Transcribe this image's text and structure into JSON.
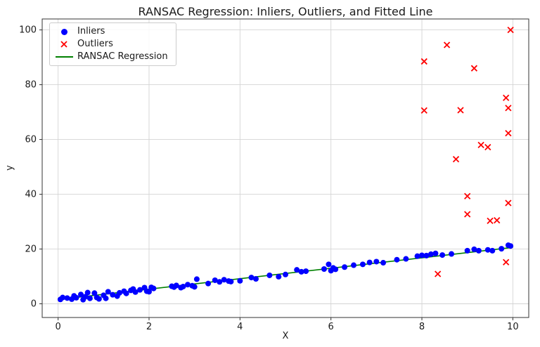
{
  "chart_data": {
    "type": "scatter",
    "title": "RANSAC Regression: Inliers, Outliers, and Fitted Line",
    "xlabel": "X",
    "ylabel": "y",
    "xlim": [
      -0.35,
      10.35
    ],
    "ylim": [
      -5,
      104
    ],
    "xticks": [
      0,
      2,
      4,
      6,
      8,
      10
    ],
    "yticks": [
      0,
      20,
      40,
      60,
      80,
      100
    ],
    "grid": true,
    "legend_position": "upper left",
    "colors": {
      "grid": "#d4d4d4",
      "spine": "#333333",
      "text": "#1a1a1a",
      "inliers": "#0000ff",
      "outliers": "#ff0000",
      "line": "#008000"
    },
    "series": [
      {
        "name": "Inliers",
        "type": "scatter",
        "marker": "circle",
        "color": "#0000ff",
        "points": [
          [
            0.05,
            1.6
          ],
          [
            0.1,
            2.3
          ],
          [
            0.2,
            2.1
          ],
          [
            0.3,
            1.7
          ],
          [
            0.35,
            2.9
          ],
          [
            0.4,
            2.2
          ],
          [
            0.5,
            3.4
          ],
          [
            0.55,
            1.5
          ],
          [
            0.6,
            2.6
          ],
          [
            0.65,
            4.1
          ],
          [
            0.7,
            2.0
          ],
          [
            0.8,
            3.9
          ],
          [
            0.85,
            2.3
          ],
          [
            0.9,
            1.8
          ],
          [
            1.0,
            3.1
          ],
          [
            1.05,
            2.0
          ],
          [
            1.1,
            4.4
          ],
          [
            1.2,
            3.3
          ],
          [
            1.3,
            2.8
          ],
          [
            1.35,
            4.0
          ],
          [
            1.45,
            4.6
          ],
          [
            1.5,
            3.8
          ],
          [
            1.6,
            4.9
          ],
          [
            1.65,
            5.4
          ],
          [
            1.7,
            4.3
          ],
          [
            1.8,
            5.1
          ],
          [
            1.9,
            5.9
          ],
          [
            1.95,
            4.6
          ],
          [
            2.0,
            4.4
          ],
          [
            2.05,
            6.0
          ],
          [
            2.1,
            5.6
          ],
          [
            2.5,
            6.4
          ],
          [
            2.55,
            6.1
          ],
          [
            2.6,
            6.7
          ],
          [
            2.7,
            5.9
          ],
          [
            2.75,
            6.3
          ],
          [
            2.85,
            7.0
          ],
          [
            2.95,
            6.6
          ],
          [
            3.0,
            6.2
          ],
          [
            3.05,
            9.0
          ],
          [
            3.3,
            7.4
          ],
          [
            3.45,
            8.6
          ],
          [
            3.55,
            8.0
          ],
          [
            3.65,
            8.8
          ],
          [
            3.75,
            8.3
          ],
          [
            3.8,
            8.1
          ],
          [
            4.0,
            8.4
          ],
          [
            4.25,
            9.6
          ],
          [
            4.35,
            9.1
          ],
          [
            4.65,
            10.4
          ],
          [
            4.85,
            9.9
          ],
          [
            5.0,
            10.7
          ],
          [
            5.25,
            12.4
          ],
          [
            5.35,
            11.7
          ],
          [
            5.45,
            11.9
          ],
          [
            5.85,
            12.7
          ],
          [
            5.95,
            14.4
          ],
          [
            6.0,
            12.1
          ],
          [
            6.05,
            13.1
          ],
          [
            6.1,
            12.6
          ],
          [
            6.3,
            13.4
          ],
          [
            6.5,
            14.1
          ],
          [
            6.7,
            14.4
          ],
          [
            6.85,
            15.1
          ],
          [
            7.0,
            15.4
          ],
          [
            7.15,
            15.0
          ],
          [
            7.45,
            16.1
          ],
          [
            7.65,
            16.4
          ],
          [
            7.9,
            17.4
          ],
          [
            8.0,
            17.7
          ],
          [
            8.1,
            17.6
          ],
          [
            8.2,
            18.1
          ],
          [
            8.3,
            18.4
          ],
          [
            8.45,
            17.8
          ],
          [
            8.65,
            18.2
          ],
          [
            9.0,
            19.4
          ],
          [
            9.15,
            19.9
          ],
          [
            9.25,
            19.4
          ],
          [
            9.45,
            19.7
          ],
          [
            9.55,
            19.4
          ],
          [
            9.75,
            20.1
          ],
          [
            9.9,
            21.4
          ],
          [
            9.95,
            21.1
          ]
        ]
      },
      {
        "name": "Outliers",
        "type": "scatter",
        "marker": "x",
        "color": "#ff0000",
        "points": [
          [
            8.05,
            88.5
          ],
          [
            8.05,
            70.6
          ],
          [
            8.35,
            10.9
          ],
          [
            8.55,
            94.5
          ],
          [
            8.75,
            52.8
          ],
          [
            8.85,
            70.7
          ],
          [
            9.0,
            39.3
          ],
          [
            9.0,
            32.7
          ],
          [
            9.15,
            86.0
          ],
          [
            9.3,
            58.0
          ],
          [
            9.45,
            57.2
          ],
          [
            9.5,
            30.3
          ],
          [
            9.65,
            30.5
          ],
          [
            9.85,
            75.2
          ],
          [
            9.85,
            15.2
          ],
          [
            9.9,
            71.5
          ],
          [
            9.9,
            62.3
          ],
          [
            9.9,
            36.8
          ],
          [
            9.95,
            100.0
          ]
        ]
      },
      {
        "name": "RANSAC Regression",
        "type": "line",
        "color": "#008000",
        "points": [
          [
            0,
            1.55
          ],
          [
            10,
            20.6
          ]
        ]
      }
    ]
  }
}
